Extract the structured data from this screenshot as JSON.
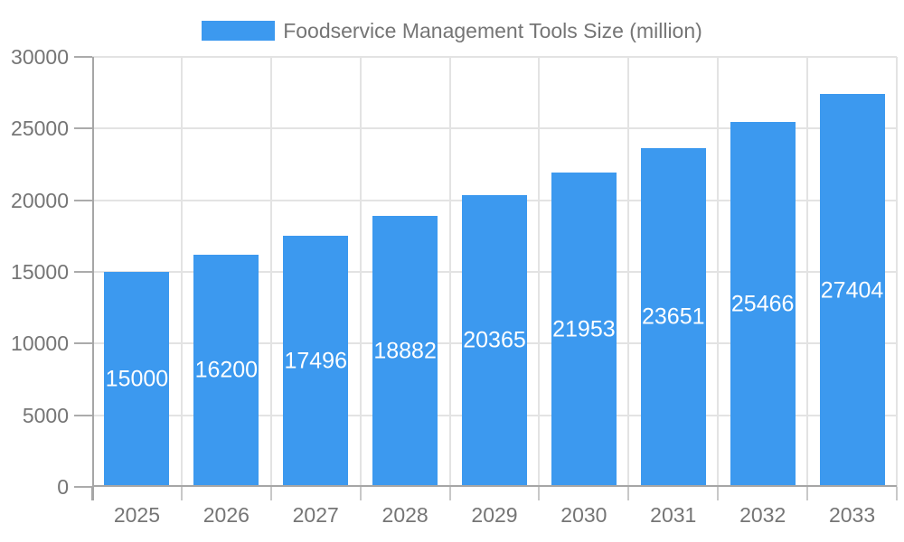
{
  "legend": {
    "label": "Foodservice Management Tools Size (million)"
  },
  "colors": {
    "bar": "#3C99EF",
    "grid": "#E3E3E3",
    "axis": "#A6A6A6",
    "tick": "#ABABAB",
    "minor_tick": "#C8C8C8",
    "axis_label": "#757575",
    "bar_label": "#FFFFFF",
    "background": "#FFFFFF"
  },
  "chart_data": {
    "type": "bar",
    "title": "Foodservice Management Tools Size (million)",
    "categories": [
      "2025",
      "2026",
      "2027",
      "2028",
      "2029",
      "2030",
      "2031",
      "2032",
      "2033"
    ],
    "values": [
      15000,
      16200,
      17496,
      18882,
      20365,
      21953,
      23651,
      25466,
      27404
    ],
    "xlabel": "",
    "ylabel": "",
    "ylim": [
      0,
      30000
    ],
    "yticks": [
      0,
      5000,
      10000,
      15000,
      20000,
      25000,
      30000
    ],
    "grid": true,
    "legend_position": "top",
    "value_labels": "inside-centered"
  }
}
